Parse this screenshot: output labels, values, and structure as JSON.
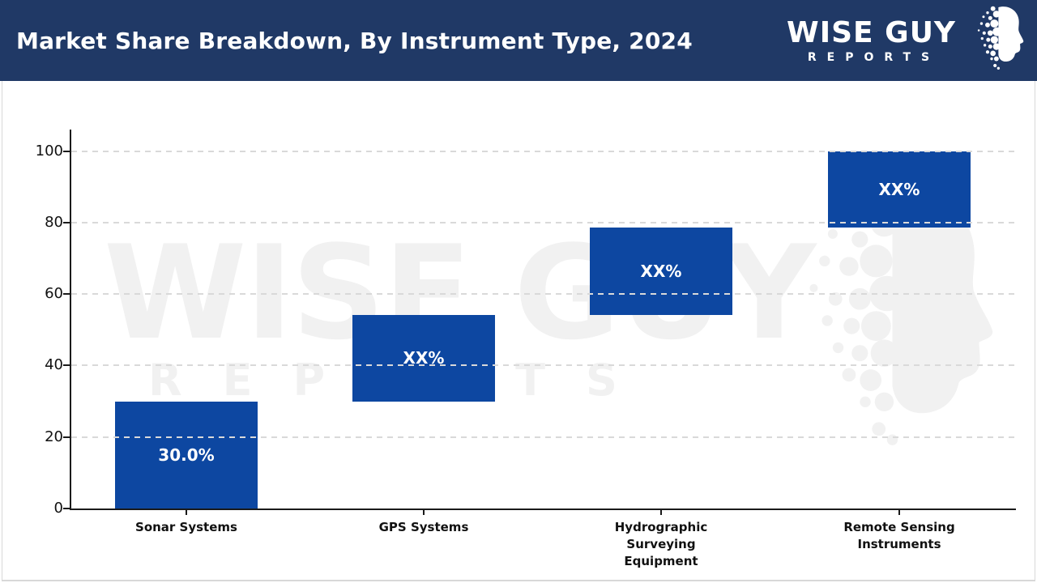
{
  "header": {
    "title": "Market Share Breakdown, By Instrument Type, 2024",
    "logo": {
      "line1": "WISE GUY",
      "line2": "REPORTS"
    }
  },
  "watermark": {
    "line1": "WISE GUY",
    "line2": "REPORTS"
  },
  "chart_data": {
    "type": "bar",
    "subtype": "waterfall",
    "title": "Market Share Breakdown, By Instrument Type, 2024",
    "categories": [
      "Sonar Systems",
      "GPS Systems",
      "Hydrographic Surveying Equipment",
      "Remote Sensing Instruments"
    ],
    "bars": [
      {
        "category": "Sonar Systems",
        "label": "30.0%",
        "start": 0,
        "end": 30
      },
      {
        "category": "GPS Systems",
        "label": "XX%",
        "start": 30,
        "end": 54.2
      },
      {
        "category": "Hydrographic Surveying Equipment",
        "label": "XX%",
        "start": 54.2,
        "end": 78.5
      },
      {
        "category": "Remote Sensing Instruments",
        "label": "XX%",
        "start": 78.5,
        "end": 100
      }
    ],
    "yticks": [
      0,
      20,
      40,
      60,
      80,
      100
    ],
    "ylim": [
      0,
      106
    ],
    "xlabel": "",
    "ylabel": "",
    "bar_color": "#0d47a1",
    "axis_color": "#1a1a1a",
    "grid": "horizontal-dashed",
    "legend": "none"
  }
}
